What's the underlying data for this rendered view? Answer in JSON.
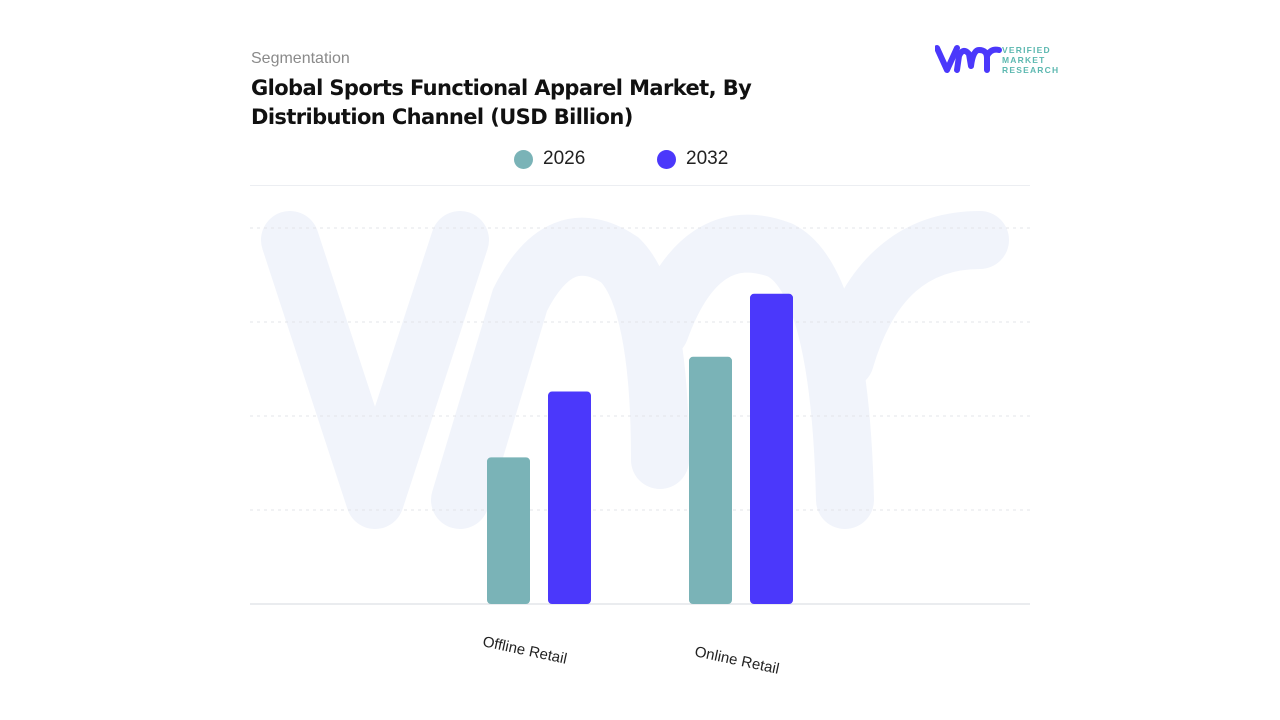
{
  "header": {
    "kicker": "Segmentation",
    "title": "Global Sports Functional Apparel Market, By Distribution Channel (USD Billion)"
  },
  "logo": {
    "text_line1": "VERIFIED",
    "text_line2": "MARKET",
    "text_line3": "RESEARCH",
    "mark": "vmr"
  },
  "colors": {
    "2026": "#7ab3b7",
    "2032": "#4b38fb",
    "watermark": "#f1f4fb",
    "grid": "#e3e5ea"
  },
  "chart_data": {
    "type": "bar",
    "title": "Global Sports Functional Apparel Market, By Distribution Channel (USD Billion)",
    "categories": [
      "Offline Retail",
      "Online Retail"
    ],
    "series": [
      {
        "name": "2026",
        "values": [
          1.56,
          2.63
        ]
      },
      {
        "name": "2032",
        "values": [
          2.26,
          3.3
        ]
      }
    ],
    "ylim": [
      0,
      4
    ],
    "grid": true,
    "y_tick_labels_shown": false,
    "legend": "top"
  }
}
